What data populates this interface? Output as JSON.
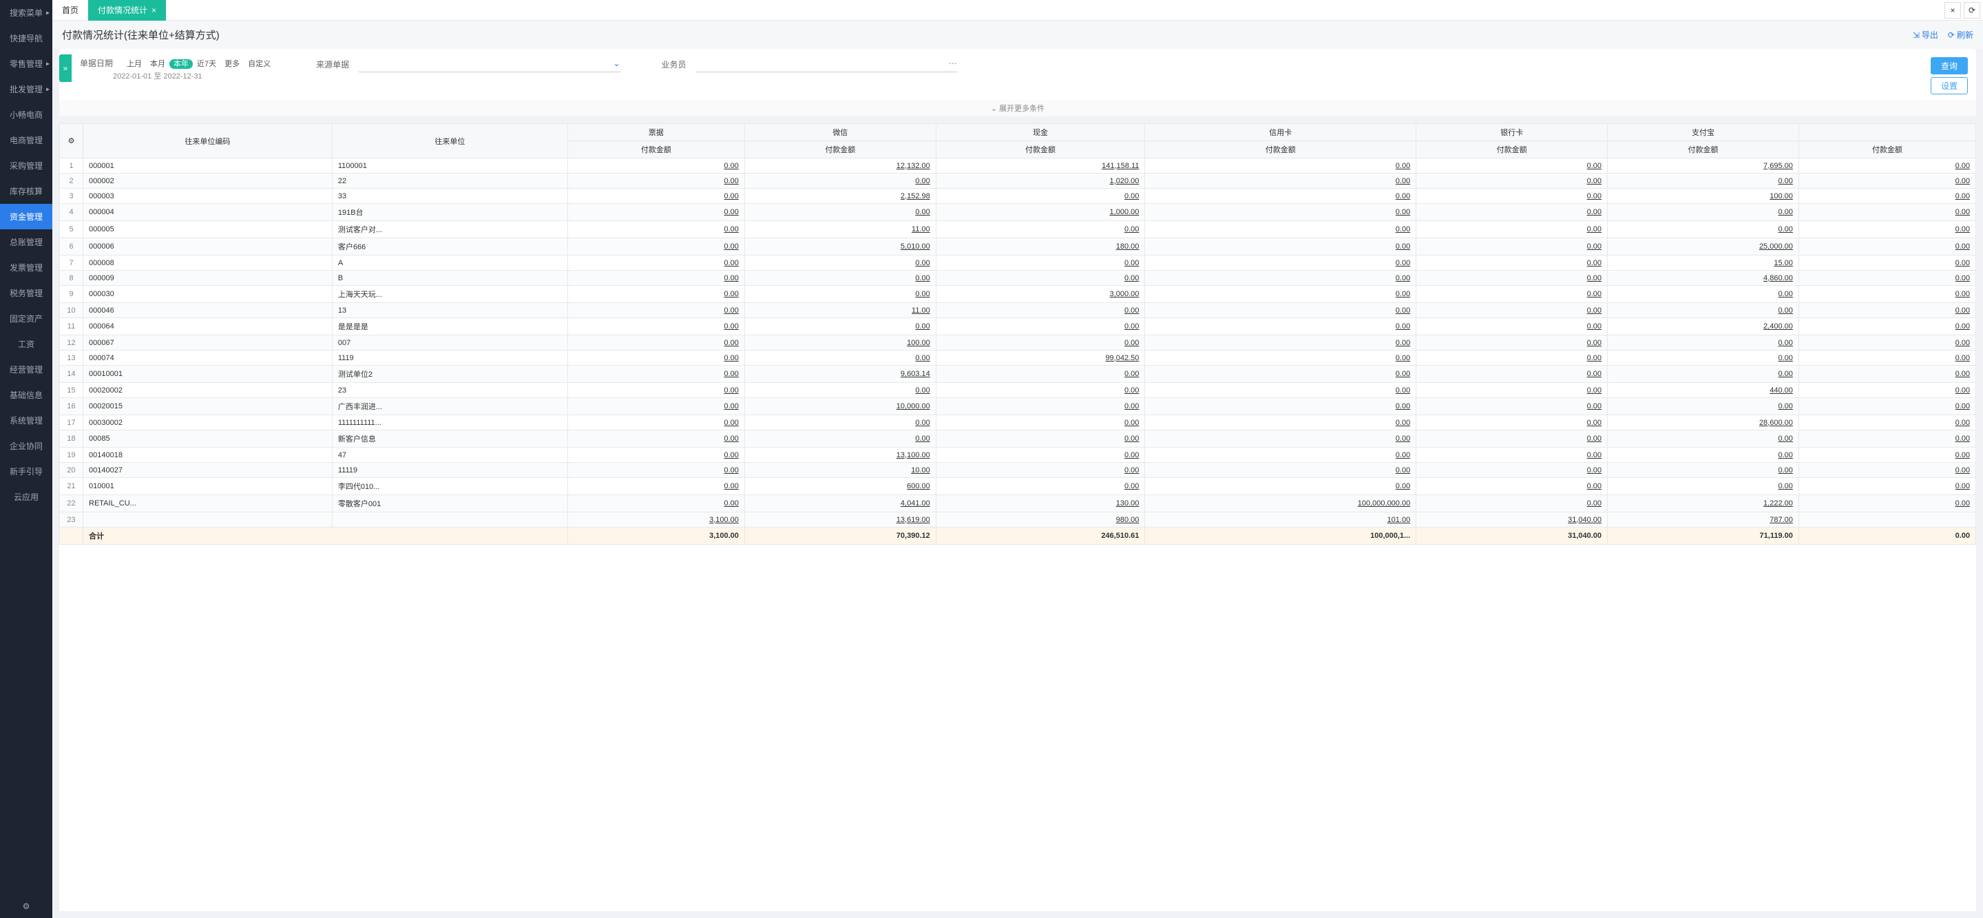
{
  "sidebar": {
    "items": [
      {
        "label": "搜索菜单",
        "arrow": true
      },
      {
        "label": "快捷导航",
        "arrow": false
      },
      {
        "label": "零售管理",
        "arrow": true
      },
      {
        "label": "批发管理",
        "arrow": true
      },
      {
        "label": "小畅电商",
        "arrow": false
      },
      {
        "label": "电商管理",
        "arrow": false
      },
      {
        "label": "采购管理",
        "arrow": false
      },
      {
        "label": "库存核算",
        "arrow": false
      },
      {
        "label": "资金管理",
        "arrow": false,
        "active": true
      },
      {
        "label": "总账管理",
        "arrow": false
      },
      {
        "label": "发票管理",
        "arrow": false
      },
      {
        "label": "税务管理",
        "arrow": false
      },
      {
        "label": "固定资产",
        "arrow": false
      },
      {
        "label": "工资",
        "arrow": false
      },
      {
        "label": "经营管理",
        "arrow": false
      },
      {
        "label": "基础信息",
        "arrow": false
      },
      {
        "label": "系统管理",
        "arrow": false
      },
      {
        "label": "企业协同",
        "arrow": false
      },
      {
        "label": "新手引导",
        "arrow": false
      },
      {
        "label": "云应用",
        "arrow": false
      }
    ],
    "gear_icon": "⚙"
  },
  "tabs": {
    "home": "首页",
    "active": "付款情况统计",
    "close": "×",
    "right_close": "×",
    "right_refresh": "⟳"
  },
  "title": {
    "text": "付款情况统计(往来单位+结算方式)",
    "export": "导出",
    "refresh": "刷新"
  },
  "filters": {
    "expand_handle": "»",
    "date_label": "单据日期",
    "date_opts": [
      "上月",
      "本月",
      "本年",
      "近7天",
      "更多",
      "自定义"
    ],
    "date_active_index": 2,
    "date_range": "2022-01-01 至 2022-12-31",
    "source_label": "来源单据",
    "source_placeholder": "",
    "sales_label": "业务员",
    "sales_placeholder": "",
    "query_btn": "查询",
    "settings_btn": "设置",
    "expand_more": "⌄ 展开更多条件"
  },
  "table": {
    "gear": "⚙",
    "headers_top": [
      "往来单位编码",
      "往来单位",
      "票据",
      "微信",
      "现金",
      "信用卡",
      "银行卡",
      "支付宝",
      ""
    ],
    "pay_amount_label": "付款金额",
    "rows": [
      {
        "i": "1",
        "code": "000001",
        "name": "1100001",
        "v": [
          "0.00",
          "12,132.00",
          "141,158.11",
          "0.00",
          "0.00",
          "7,695.00",
          "0.00"
        ]
      },
      {
        "i": "2",
        "code": "000002",
        "name": "22",
        "v": [
          "0.00",
          "0.00",
          "1,020.00",
          "0.00",
          "0.00",
          "0.00",
          "0.00"
        ]
      },
      {
        "i": "3",
        "code": "000003",
        "name": "33",
        "v": [
          "0.00",
          "2,152.98",
          "0.00",
          "0.00",
          "0.00",
          "100.00",
          "0.00"
        ]
      },
      {
        "i": "4",
        "code": "000004",
        "name": "191B台",
        "v": [
          "0.00",
          "0.00",
          "1,000.00",
          "0.00",
          "0.00",
          "0.00",
          "0.00"
        ]
      },
      {
        "i": "5",
        "code": "000005",
        "name": "测试客户对...",
        "v": [
          "0.00",
          "11.00",
          "0.00",
          "0.00",
          "0.00",
          "0.00",
          "0.00"
        ]
      },
      {
        "i": "6",
        "code": "000006",
        "name": "客户666",
        "v": [
          "0.00",
          "5,010.00",
          "180.00",
          "0.00",
          "0.00",
          "25,000.00",
          "0.00"
        ]
      },
      {
        "i": "7",
        "code": "000008",
        "name": "A",
        "v": [
          "0.00",
          "0.00",
          "0.00",
          "0.00",
          "0.00",
          "15.00",
          "0.00"
        ]
      },
      {
        "i": "8",
        "code": "000009",
        "name": "B",
        "v": [
          "0.00",
          "0.00",
          "0.00",
          "0.00",
          "0.00",
          "4,860.00",
          "0.00"
        ]
      },
      {
        "i": "9",
        "code": "000030",
        "name": "上海天天玩...",
        "v": [
          "0.00",
          "0.00",
          "3,000.00",
          "0.00",
          "0.00",
          "0.00",
          "0.00"
        ]
      },
      {
        "i": "10",
        "code": "000046",
        "name": "13",
        "v": [
          "0.00",
          "11.00",
          "0.00",
          "0.00",
          "0.00",
          "0.00",
          "0.00"
        ]
      },
      {
        "i": "11",
        "code": "000064",
        "name": "是是是是",
        "v": [
          "0.00",
          "0.00",
          "0.00",
          "0.00",
          "0.00",
          "2,400.00",
          "0.00"
        ]
      },
      {
        "i": "12",
        "code": "000067",
        "name": "007",
        "v": [
          "0.00",
          "100.00",
          "0.00",
          "0.00",
          "0.00",
          "0.00",
          "0.00"
        ]
      },
      {
        "i": "13",
        "code": "000074",
        "name": "1119",
        "v": [
          "0.00",
          "0.00",
          "99,042.50",
          "0.00",
          "0.00",
          "0.00",
          "0.00"
        ]
      },
      {
        "i": "14",
        "code": "00010001",
        "name": "测试单位2",
        "v": [
          "0.00",
          "9,603.14",
          "0.00",
          "0.00",
          "0.00",
          "0.00",
          "0.00"
        ]
      },
      {
        "i": "15",
        "code": "00020002",
        "name": "23",
        "v": [
          "0.00",
          "0.00",
          "0.00",
          "0.00",
          "0.00",
          "440.00",
          "0.00"
        ]
      },
      {
        "i": "16",
        "code": "00020015",
        "name": "广西丰润进...",
        "v": [
          "0.00",
          "10,000.00",
          "0.00",
          "0.00",
          "0.00",
          "0.00",
          "0.00"
        ]
      },
      {
        "i": "17",
        "code": "00030002",
        "name": "1111111111...",
        "v": [
          "0.00",
          "0.00",
          "0.00",
          "0.00",
          "0.00",
          "28,600.00",
          "0.00"
        ]
      },
      {
        "i": "18",
        "code": "00085",
        "name": "新客户信息",
        "v": [
          "0.00",
          "0.00",
          "0.00",
          "0.00",
          "0.00",
          "0.00",
          "0.00"
        ]
      },
      {
        "i": "19",
        "code": "00140018",
        "name": "47",
        "v": [
          "0.00",
          "13,100.00",
          "0.00",
          "0.00",
          "0.00",
          "0.00",
          "0.00"
        ]
      },
      {
        "i": "20",
        "code": "00140027",
        "name": "11119",
        "v": [
          "0.00",
          "10.00",
          "0.00",
          "0.00",
          "0.00",
          "0.00",
          "0.00"
        ]
      },
      {
        "i": "21",
        "code": "010001",
        "name": "李四代010...",
        "v": [
          "0.00",
          "600.00",
          "0.00",
          "0.00",
          "0.00",
          "0.00",
          "0.00"
        ]
      },
      {
        "i": "22",
        "code": "RETAIL_CU...",
        "name": "零散客户001",
        "v": [
          "0.00",
          "4,041.00",
          "130.00",
          "100,000,000.00",
          "0.00",
          "1,222.00",
          "0.00"
        ]
      },
      {
        "i": "23",
        "code": "",
        "name": "",
        "v": [
          "3,100.00",
          "13,619.00",
          "980.00",
          "101.00",
          "31,040.00",
          "787.00",
          ""
        ]
      }
    ],
    "footer": {
      "label": "合计",
      "values": [
        "3,100.00",
        "70,390.12",
        "246,510.61",
        "100,000,1...",
        "31,040.00",
        "71,119.00",
        "0.00"
      ]
    }
  },
  "colors": {
    "sidebar_bg": "#1e2430",
    "sidebar_active": "#2b7de9",
    "tab_active": "#1abc9c",
    "primary_btn": "#3da7f3",
    "footer_bg": "#fdf6e9"
  }
}
